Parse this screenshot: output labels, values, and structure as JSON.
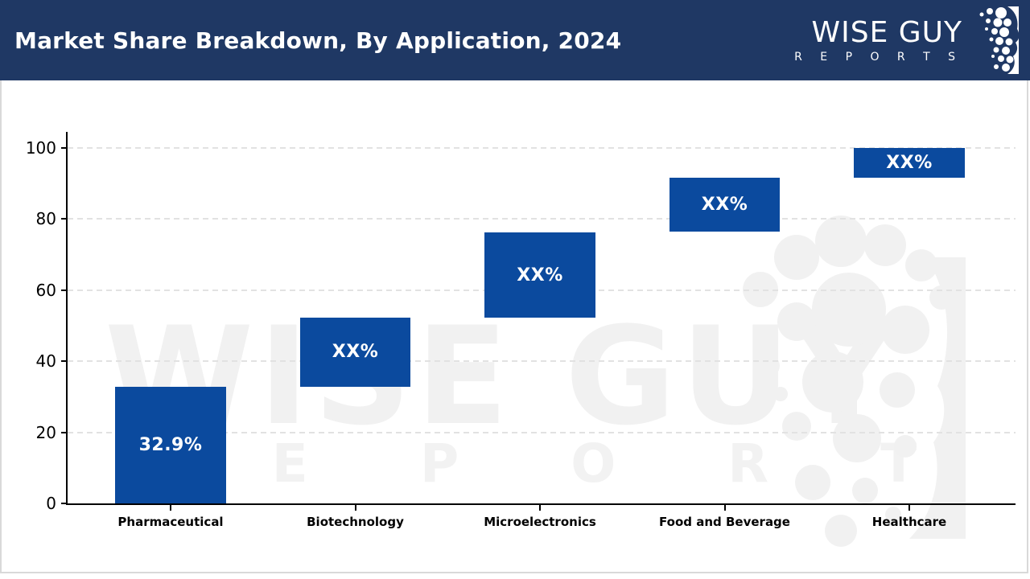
{
  "header": {
    "title": "Market Share Breakdown, By Application, 2024",
    "bg_color": "#1f3864",
    "logo": {
      "line1": "WISE GUY",
      "line2": "R E P O R T S",
      "icon": "wiseguy-head-icon"
    }
  },
  "watermark": {
    "line1": "WISE GUY",
    "line2": "R E P O R T S",
    "icon": "wiseguy-head-watermark-icon"
  },
  "chart_data": {
    "type": "bar",
    "subtype": "waterfall",
    "title": "Market Share Breakdown, By Application, 2024",
    "categories": [
      "Pharmaceutical",
      "Biotechnology",
      "Microelectronics",
      "Food and Beverage",
      "Healthcare"
    ],
    "segments": [
      {
        "category": "Pharmaceutical",
        "start": 0,
        "end": 32.9,
        "label": "32.9%"
      },
      {
        "category": "Biotechnology",
        "start": 32.9,
        "end": 52.3,
        "label": "XX%"
      },
      {
        "category": "Microelectronics",
        "start": 52.3,
        "end": 76.2,
        "label": "XX%"
      },
      {
        "category": "Food and Beverage",
        "start": 76.4,
        "end": 91.6,
        "label": "XX%"
      },
      {
        "category": "Healthcare",
        "start": 91.6,
        "end": 100,
        "label": "XX%"
      }
    ],
    "yticks": [
      0,
      20,
      40,
      60,
      80,
      100
    ],
    "ylim": [
      0,
      104.5
    ],
    "xlabel": "",
    "ylabel": "",
    "grid": "horizontal-dashed",
    "legend": "none",
    "bar_color": "#0b4a9e",
    "bar_label_color": "#ffffff",
    "axis_color": "#000000",
    "gridline_color": "#e2e2e2"
  }
}
